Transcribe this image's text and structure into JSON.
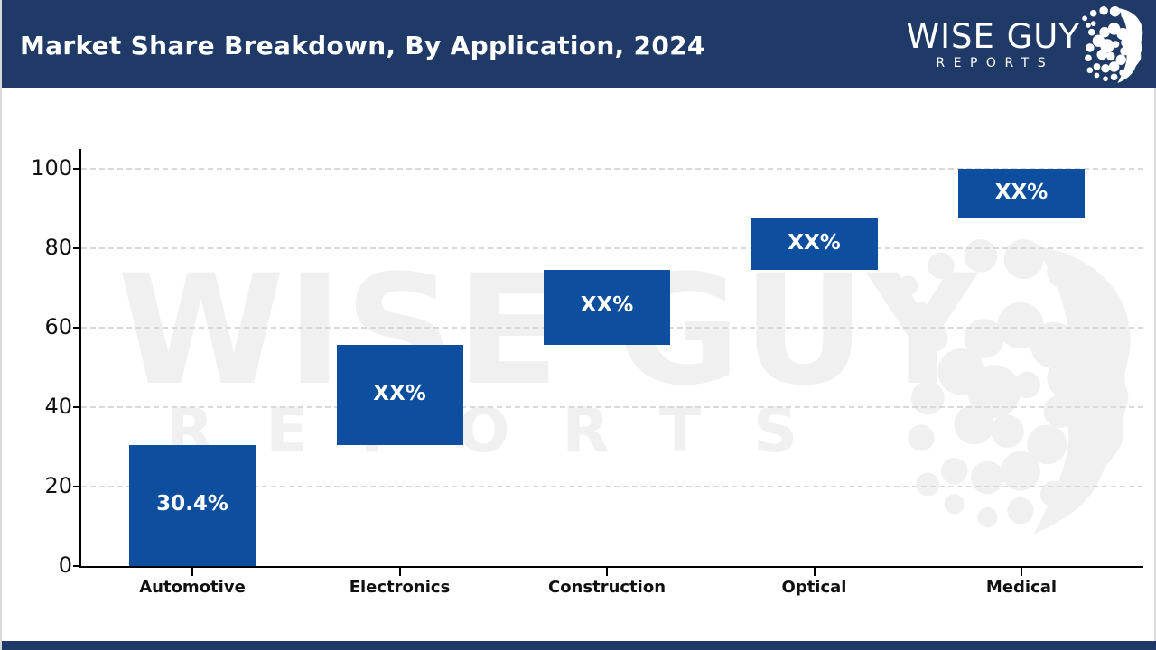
{
  "header": {
    "title": "Market Share Breakdown, By Application, 2024",
    "logo": {
      "line1": "WISE GUY",
      "line2": "REPORTS"
    }
  },
  "watermark": {
    "line1": "WISE GUY",
    "line2": "REPORTS"
  },
  "colors": {
    "header_bg": "#1f3a66",
    "footer_bg": "#1f3a66",
    "bar": "#0d4f9e",
    "bar_label_text": "#ffffff",
    "grid": "#d9d9d9",
    "watermark": "#f0f0f1",
    "axis": "#000000"
  },
  "chart_data": {
    "type": "bar",
    "subtype": "waterfall",
    "title": "Market Share Breakdown, By Application, 2024",
    "xlabel": "",
    "ylabel": "",
    "categories": [
      "Automotive",
      "Electronics",
      "Construction",
      "Optical",
      "Medical"
    ],
    "segments": [
      {
        "category": "Automotive",
        "start": 0,
        "end": 30.4,
        "value": 30.4,
        "label": "30.4%"
      },
      {
        "category": "Electronics",
        "start": 30.4,
        "end": 55.7,
        "value": 25.3,
        "label": "XX%"
      },
      {
        "category": "Construction",
        "start": 55.7,
        "end": 74.6,
        "value": 18.9,
        "label": "XX%"
      },
      {
        "category": "Optical",
        "start": 74.6,
        "end": 87.4,
        "value": 12.8,
        "label": "XX%"
      },
      {
        "category": "Medical",
        "start": 87.4,
        "end": 100,
        "value": 12.6,
        "label": "XX%"
      }
    ],
    "yticks": [
      0,
      20,
      40,
      60,
      80,
      100
    ],
    "ylim": [
      0,
      105
    ],
    "grid": "horizontal-dashed",
    "legend": "none"
  }
}
